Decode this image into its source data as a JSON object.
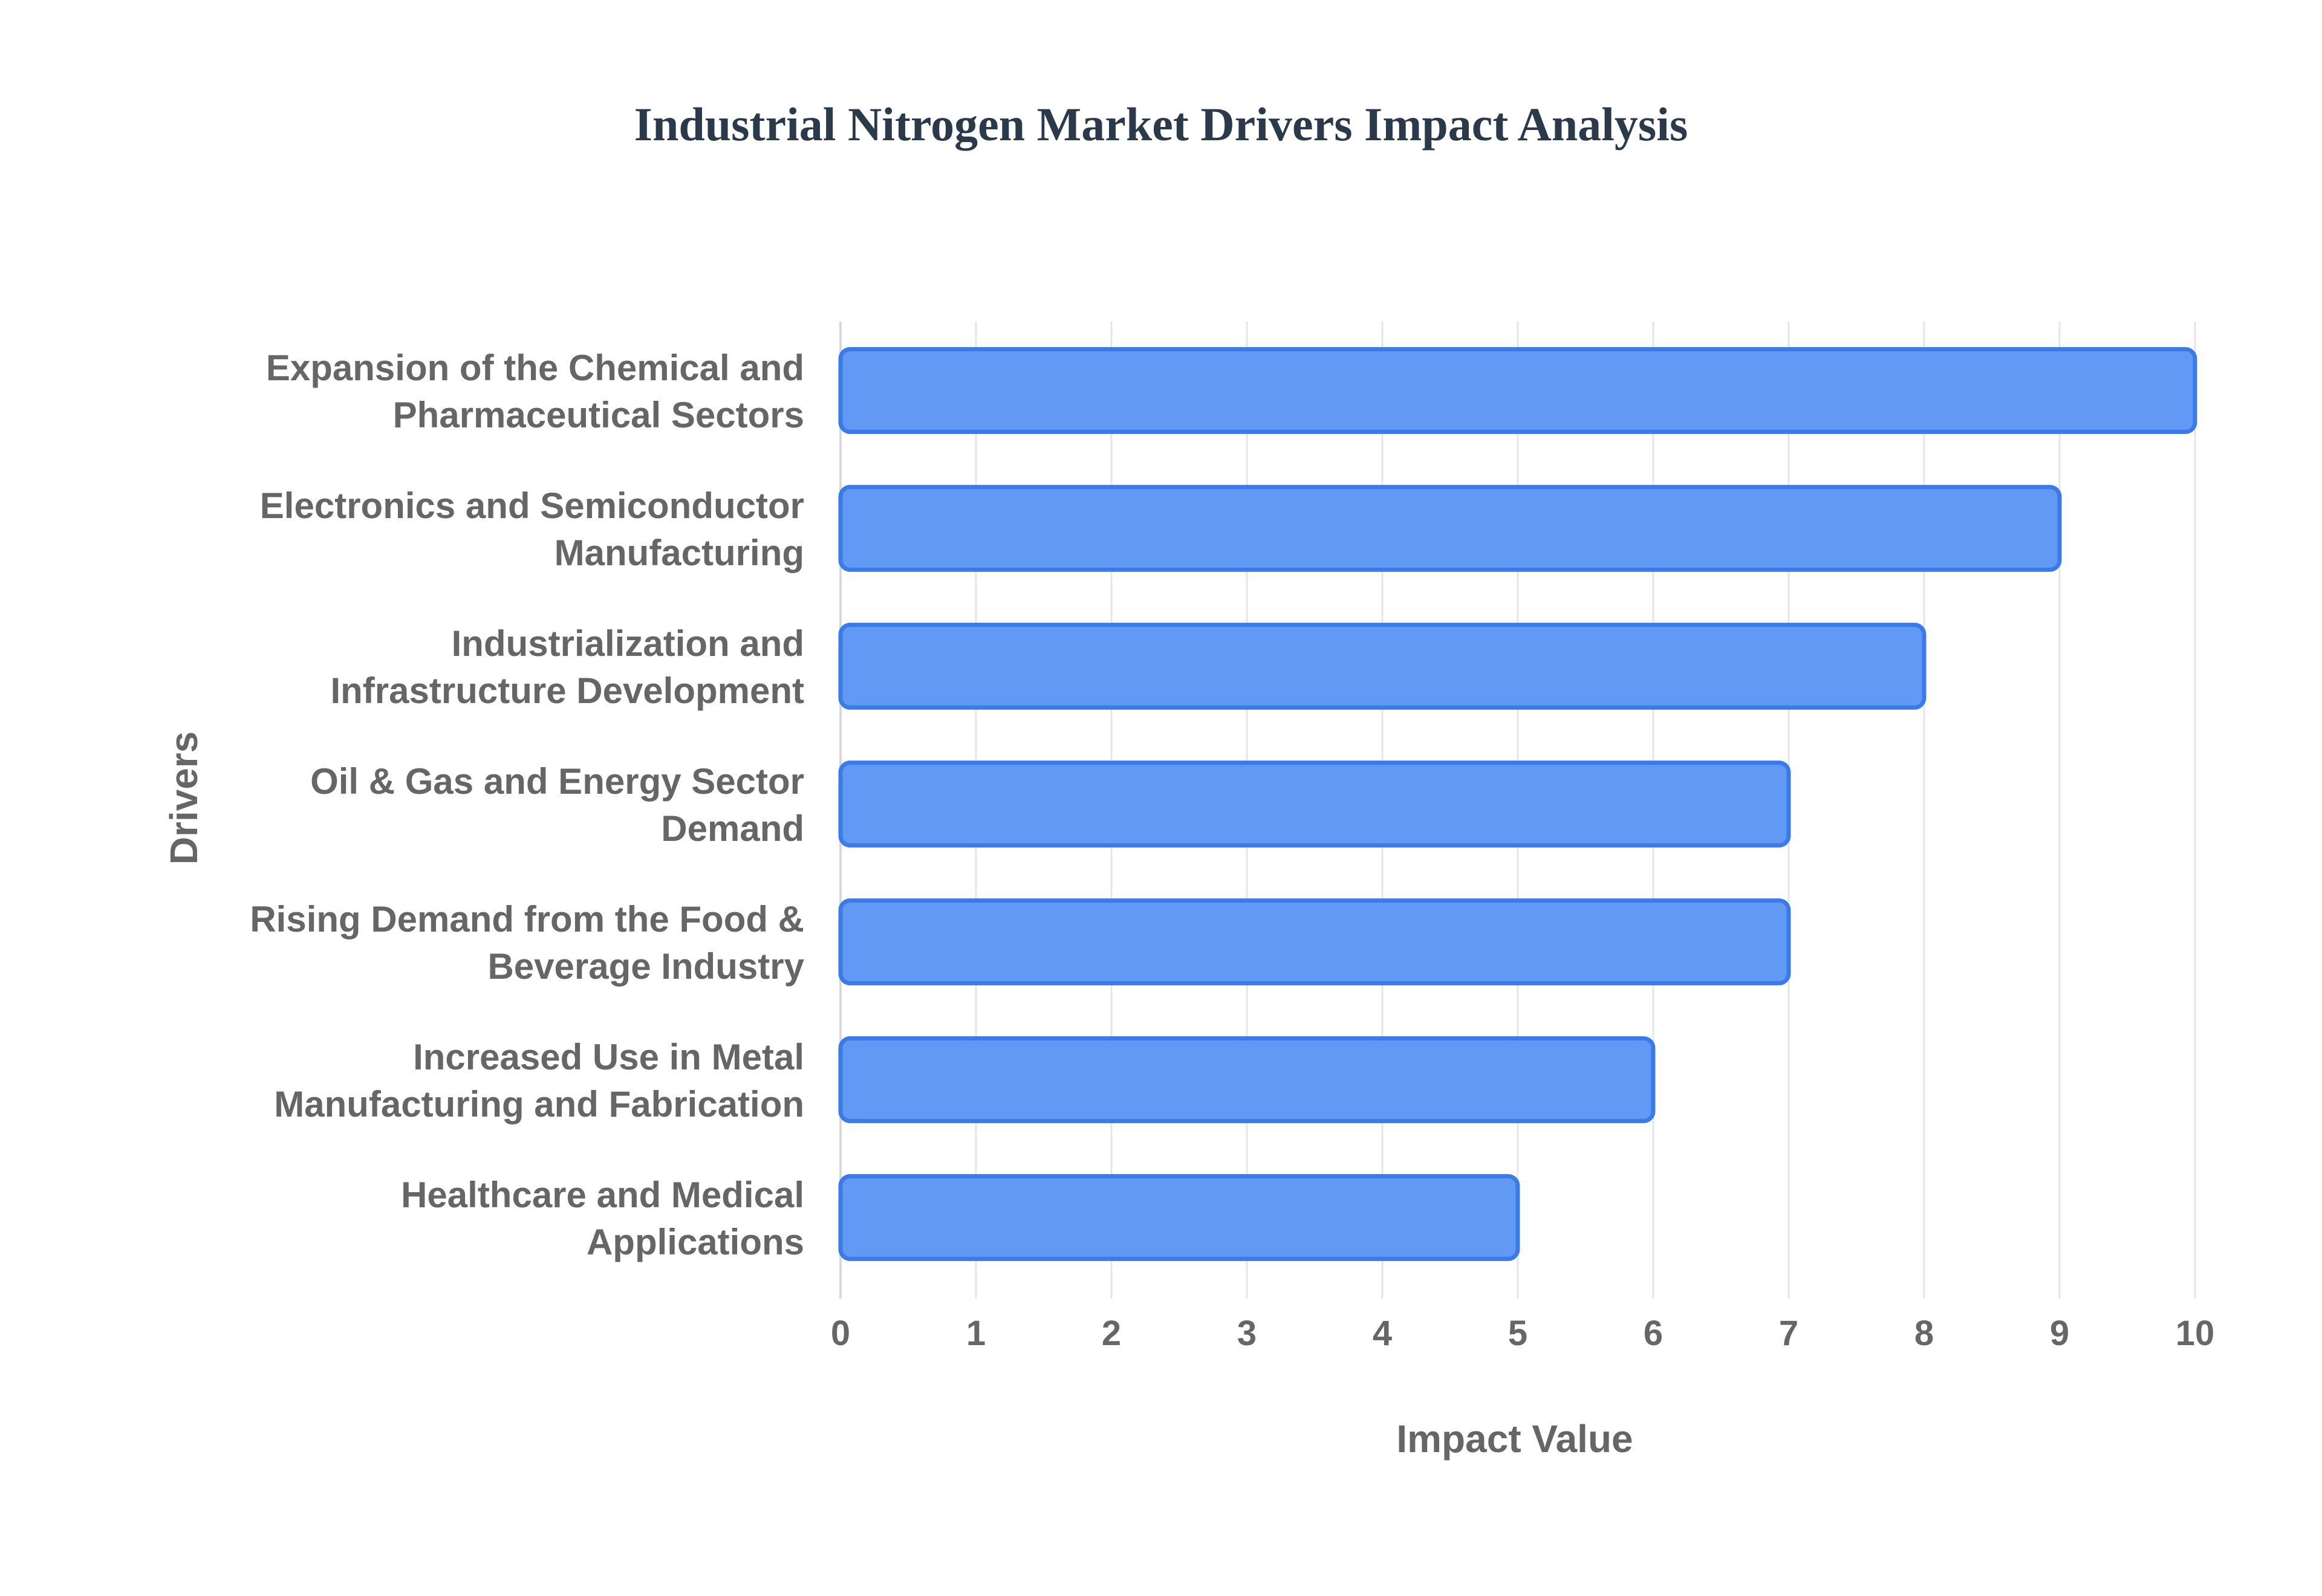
{
  "chart_data": {
    "type": "bar",
    "orientation": "horizontal",
    "title": "Industrial Nitrogen Market Drivers Impact Analysis",
    "xlabel": "Impact Value",
    "ylabel": "Drivers",
    "xlim": [
      0,
      10
    ],
    "x_ticks": [
      "0",
      "1",
      "2",
      "3",
      "4",
      "5",
      "6",
      "7",
      "8",
      "9",
      "10"
    ],
    "grid": true,
    "categories": [
      [
        "Expansion of the Chemical and",
        "Pharmaceutical Sectors"
      ],
      [
        "Electronics and Semiconductor",
        "Manufacturing"
      ],
      [
        "Industrialization and",
        "Infrastructure Development"
      ],
      [
        "Oil & Gas and Energy Sector",
        "Demand"
      ],
      [
        "Rising Demand from the Food &",
        "Beverage Industry"
      ],
      [
        "Increased Use in Metal",
        "Manufacturing and Fabrication"
      ],
      [
        "Healthcare and Medical",
        "Applications"
      ]
    ],
    "values": [
      10,
      9,
      8,
      7,
      7,
      6,
      5
    ],
    "colors": {
      "bar_fill": "#6199f5",
      "bar_stroke": "#3b7be8",
      "title": "#2b3a4b",
      "text": "#666666",
      "grid": "#e6e6e6"
    }
  }
}
